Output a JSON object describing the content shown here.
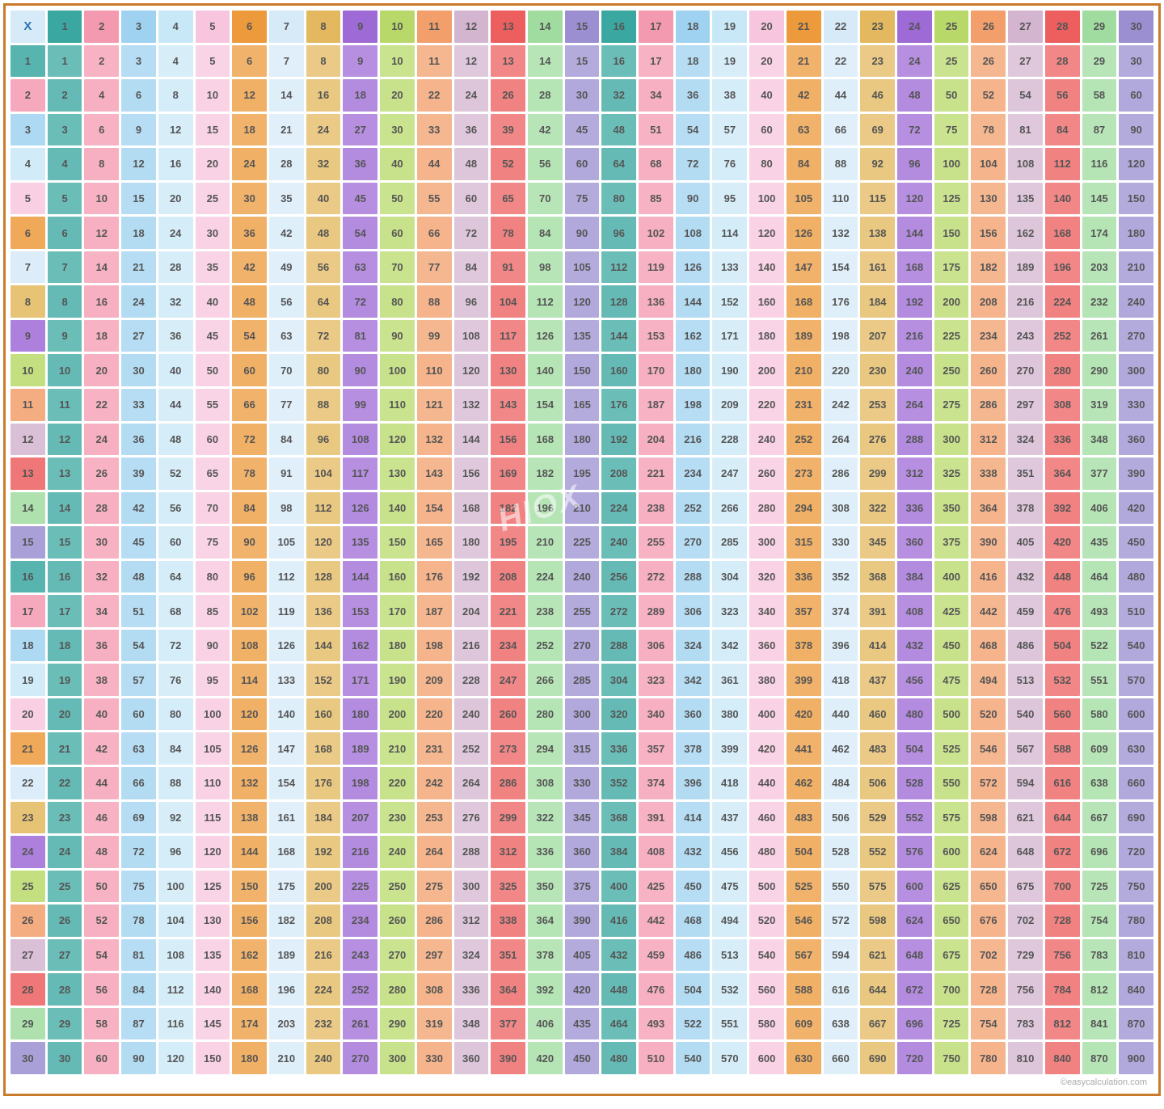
{
  "table": {
    "type": "multiplication-table",
    "size": 30,
    "corner_label": "X",
    "background": "#ffffff",
    "frame_border_color": "#c97a2a",
    "gap_color": "#ffffff",
    "header_colors": [
      "#3aa7a0",
      "#f49ab0",
      "#9ed2f0",
      "#c9e8f7",
      "#f7c6de",
      "#ec9a3b",
      "#d6eaf8",
      "#e3b85e",
      "#9d6ad6",
      "#b8d96a",
      "#f29f6b",
      "#d4b5d0",
      "#ed5f5f",
      "#a0dca0",
      "#9b8fd1",
      "#3aa7a0",
      "#f49ab0",
      "#9ed2f0",
      "#c9e8f7",
      "#f7c6de",
      "#ec9a3b",
      "#d6eaf8",
      "#e3b85e",
      "#9d6ad6",
      "#b8d96a",
      "#f29f6b",
      "#d4b5d0",
      "#ed5f5f",
      "#a0dca0",
      "#9b8fd1"
    ],
    "text_color": "#555555",
    "corner_bg": "#d6eaf8",
    "corner_fg": "#2e74b5",
    "cell_font_size": 13,
    "cell_font_weight": 700
  },
  "watermark": {
    "text": "HIOX"
  },
  "credit": {
    "text": "©easycalculation.com"
  }
}
